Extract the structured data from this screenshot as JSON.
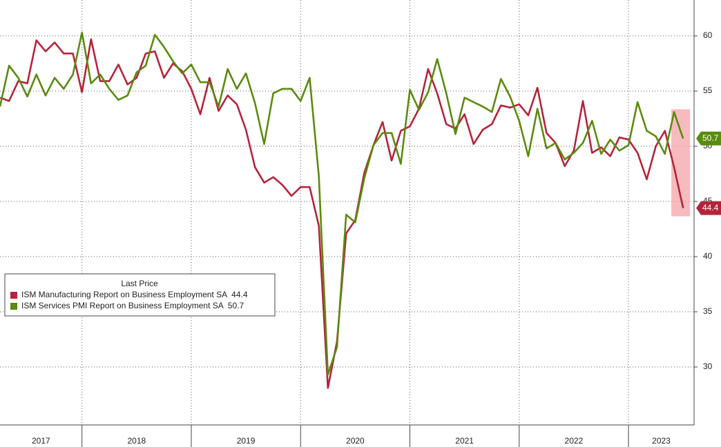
{
  "chart_data": {
    "type": "line",
    "legend_title": "Last Price",
    "x": [
      2017.25,
      2017.333,
      2017.417,
      2017.5,
      2017.583,
      2017.667,
      2017.75,
      2017.833,
      2017.917,
      2018,
      2018.083,
      2018.167,
      2018.25,
      2018.333,
      2018.417,
      2018.5,
      2018.583,
      2018.667,
      2018.75,
      2018.833,
      2018.917,
      2019,
      2019.083,
      2019.167,
      2019.25,
      2019.333,
      2019.417,
      2019.5,
      2019.583,
      2019.667,
      2019.75,
      2019.833,
      2019.917,
      2020,
      2020.083,
      2020.167,
      2020.25,
      2020.333,
      2020.417,
      2020.5,
      2020.583,
      2020.667,
      2020.75,
      2020.833,
      2020.917,
      2021,
      2021.083,
      2021.167,
      2021.25,
      2021.333,
      2021.417,
      2021.5,
      2021.583,
      2021.667,
      2021.75,
      2021.833,
      2021.917,
      2022,
      2022.083,
      2022.167,
      2022.25,
      2022.333,
      2022.417,
      2022.5,
      2022.583,
      2022.667,
      2022.75,
      2022.833,
      2022.917,
      2023,
      2023.083,
      2023.167,
      2023.25,
      2023.333,
      2023.417,
      2023.5
    ],
    "series": [
      {
        "name": "ISM Manufacturing Report on Business Employment SA",
        "color": "#b5233a",
        "values": [
          54.4,
          54.1,
          55.9,
          55.7,
          59.6,
          58.6,
          59.4,
          58.4,
          58.4,
          54.9,
          59.7,
          55.9,
          55.9,
          57.4,
          55.6,
          56.2,
          58.4,
          58.6,
          56.2,
          57.5,
          56.8,
          55.2,
          52.9,
          56.2,
          53.2,
          54.6,
          53.8,
          51.5,
          48.1,
          46.7,
          47.2,
          46.5,
          45.5,
          46.3,
          46.3,
          42.8,
          28.1,
          32.3,
          42.1,
          43.3,
          47.6,
          50.1,
          52.2,
          48.7,
          51.4,
          51.8,
          53.4,
          57.0,
          54.8,
          52.0,
          51.6,
          52.9,
          50.2,
          51.5,
          52.0,
          53.7,
          53.5,
          53.8,
          52.8,
          55.3,
          51.2,
          50.3,
          48.2,
          49.6,
          54.1,
          49.4,
          49.9,
          49.1,
          50.8,
          50.6,
          49.4,
          47.0,
          50.0,
          51.4,
          48.1,
          44.4
        ]
      },
      {
        "name": "ISM Services PMI Report on Business Employment SA",
        "color": "#5a8a0f",
        "values": [
          53.6,
          57.3,
          56.2,
          54.5,
          56.5,
          54.6,
          56.2,
          55.2,
          56.5,
          60.3,
          55.7,
          56.5,
          55.2,
          54.2,
          54.6,
          56.7,
          57.3,
          60.1,
          59.0,
          57.7,
          56.6,
          57.4,
          55.8,
          55.8,
          53.6,
          57.0,
          55.2,
          56.6,
          53.9,
          50.2,
          54.8,
          55.2,
          55.2,
          54.1,
          56.2,
          47.3,
          29.3,
          31.8,
          43.8,
          43.1,
          47.1,
          50.1,
          51.2,
          51.2,
          48.4,
          55.1,
          53.3,
          54.9,
          57.9,
          54.8,
          51.1,
          54.4,
          54.0,
          53.6,
          53.1,
          56.1,
          54.5,
          52.3,
          49.1,
          53.4,
          49.8,
          50.3,
          48.8,
          49.4,
          50.3,
          52.3,
          49.3,
          50.6,
          49.6,
          50.1,
          54.0,
          51.4,
          50.9,
          49.3,
          53.1,
          50.7
        ]
      }
    ],
    "xlim": [
      2017.25,
      2023.6
    ],
    "xticks": [
      2017,
      2018,
      2019,
      2020,
      2021,
      2022,
      2023
    ],
    "ylim": [
      24.75,
      63.25
    ],
    "yticks": [
      30,
      35,
      40,
      45,
      50,
      55,
      60
    ],
    "grid": true
  }
}
